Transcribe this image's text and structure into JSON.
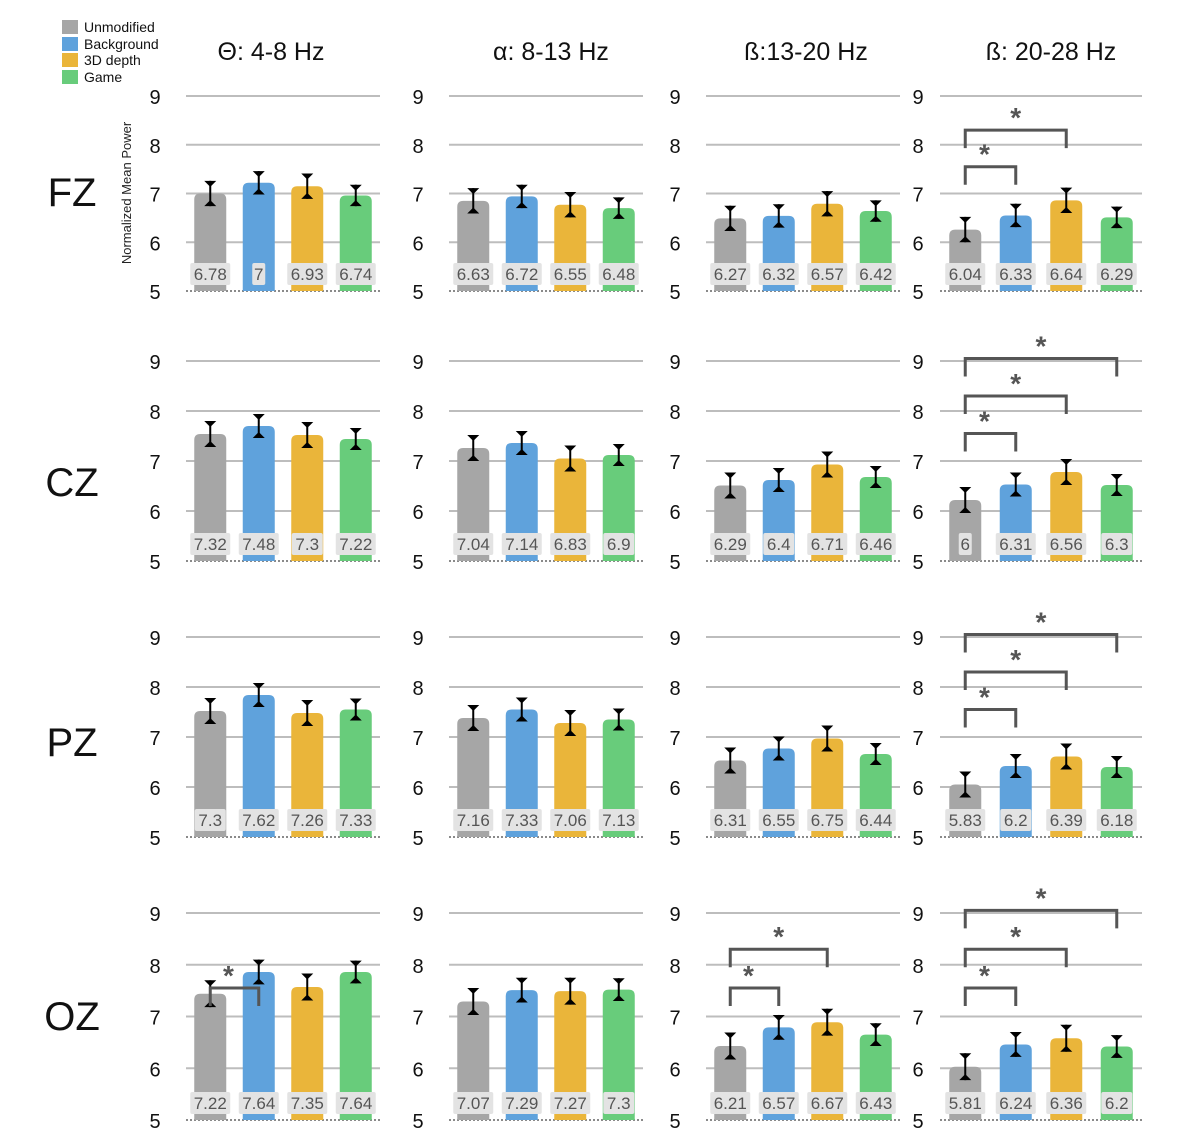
{
  "legend": [
    {
      "label": "Unmodified",
      "color": "#a6a6a6"
    },
    {
      "label": "Background",
      "color": "#5fa2dc"
    },
    {
      "label": "3D depth",
      "color": "#eab53a"
    },
    {
      "label": "Game",
      "color": "#68cc7b"
    }
  ],
  "chart_data": {
    "type": "bar",
    "title": "",
    "ylabel": "Normalized Mean Power",
    "ylim": [
      5,
      9
    ],
    "yticks": [
      "5",
      "6",
      "7",
      "8",
      "9"
    ],
    "grid": true,
    "legend_position": "top-left",
    "series_names": [
      "Unmodified",
      "Background",
      "3D depth",
      "Game"
    ],
    "columns": [
      "Θ: 4-8 Hz",
      "α: 8-13 Hz",
      "ß:13-20 Hz",
      "ß: 20-28 Hz"
    ],
    "rows": [
      "FZ",
      "CZ",
      "PZ",
      "OZ"
    ],
    "panels": [
      [
        {
          "values": [
            6.78,
            7,
            6.93,
            6.74
          ],
          "value_labels": [
            "6.78",
            "7",
            "6.93",
            "6.74"
          ],
          "significance": []
        },
        {
          "values": [
            6.63,
            6.72,
            6.55,
            6.48
          ],
          "value_labels": [
            "6.63",
            "6.72",
            "6.55",
            "6.48"
          ],
          "significance": []
        },
        {
          "values": [
            6.27,
            6.32,
            6.57,
            6.42
          ],
          "value_labels": [
            "6.27",
            "6.32",
            "6.57",
            "6.42"
          ],
          "significance": []
        },
        {
          "values": [
            6.04,
            6.33,
            6.64,
            6.29
          ],
          "value_labels": [
            "6.04",
            "6.33",
            "6.64",
            "6.29"
          ],
          "significance": [
            {
              "from": 0,
              "to": 1,
              "label": "*"
            },
            {
              "from": 0,
              "to": 2,
              "label": "*"
            }
          ]
        }
      ],
      [
        {
          "values": [
            7.32,
            7.48,
            7.3,
            7.22
          ],
          "value_labels": [
            "7.32",
            "7.48",
            "7.3",
            "7.22"
          ],
          "significance": []
        },
        {
          "values": [
            7.04,
            7.14,
            6.83,
            6.9
          ],
          "value_labels": [
            "7.04",
            "7.14",
            "6.83",
            "6.9"
          ],
          "significance": []
        },
        {
          "values": [
            6.29,
            6.4,
            6.71,
            6.46
          ],
          "value_labels": [
            "6.29",
            "6.4",
            "6.71",
            "6.46"
          ],
          "significance": []
        },
        {
          "values": [
            6,
            6.31,
            6.56,
            6.3
          ],
          "value_labels": [
            "6",
            "6.31",
            "6.56",
            "6.3"
          ],
          "significance": [
            {
              "from": 0,
              "to": 1,
              "label": "*"
            },
            {
              "from": 0,
              "to": 2,
              "label": "*"
            },
            {
              "from": 0,
              "to": 3,
              "label": "*"
            }
          ]
        }
      ],
      [
        {
          "values": [
            7.3,
            7.62,
            7.26,
            7.33
          ],
          "value_labels": [
            "7.3",
            "7.62",
            "7.26",
            "7.33"
          ],
          "significance": []
        },
        {
          "values": [
            7.16,
            7.33,
            7.06,
            7.13
          ],
          "value_labels": [
            "7.16",
            "7.33",
            "7.06",
            "7.13"
          ],
          "significance": []
        },
        {
          "values": [
            6.31,
            6.55,
            6.75,
            6.44
          ],
          "value_labels": [
            "6.31",
            "6.55",
            "6.75",
            "6.44"
          ],
          "significance": []
        },
        {
          "values": [
            5.83,
            6.2,
            6.39,
            6.18
          ],
          "value_labels": [
            "5.83",
            "6.2",
            "6.39",
            "6.18"
          ],
          "significance": [
            {
              "from": 0,
              "to": 1,
              "label": "*"
            },
            {
              "from": 0,
              "to": 2,
              "label": "*"
            },
            {
              "from": 0,
              "to": 3,
              "label": "*"
            }
          ]
        }
      ],
      [
        {
          "values": [
            7.22,
            7.64,
            7.35,
            7.64
          ],
          "value_labels": [
            "7.22",
            "7.64",
            "7.35",
            "7.64"
          ],
          "significance": [
            {
              "from": 0,
              "to": 1,
              "label": "*"
            }
          ]
        },
        {
          "values": [
            7.07,
            7.29,
            7.27,
            7.3
          ],
          "value_labels": [
            "7.07",
            "7.29",
            "7.27",
            "7.3"
          ],
          "significance": []
        },
        {
          "values": [
            6.21,
            6.57,
            6.67,
            6.43
          ],
          "value_labels": [
            "6.21",
            "6.57",
            "6.67",
            "6.43"
          ],
          "significance": [
            {
              "from": 0,
              "to": 1,
              "label": "*"
            },
            {
              "from": 0,
              "to": 2,
              "label": "*"
            }
          ]
        },
        {
          "values": [
            5.81,
            6.24,
            6.36,
            6.2
          ],
          "value_labels": [
            "5.81",
            "6.24",
            "6.36",
            "6.2"
          ],
          "significance": [
            {
              "from": 0,
              "to": 1,
              "label": "*"
            },
            {
              "from": 0,
              "to": 2,
              "label": "*"
            },
            {
              "from": 0,
              "to": 3,
              "label": "*"
            }
          ]
        }
      ]
    ]
  }
}
